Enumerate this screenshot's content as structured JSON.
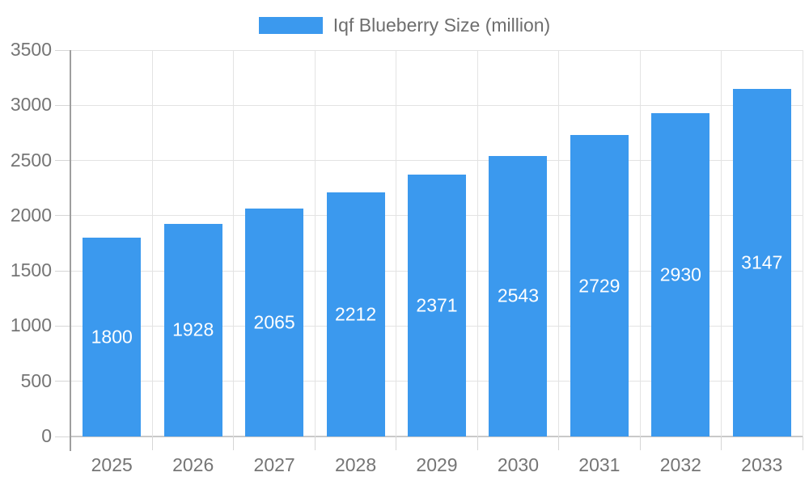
{
  "chart_data": {
    "type": "bar",
    "title": "Iqf Blueberry Size (million)",
    "categories": [
      "2025",
      "2026",
      "2027",
      "2028",
      "2029",
      "2030",
      "2031",
      "2032",
      "2033"
    ],
    "values": [
      1800,
      1928,
      2065,
      2212,
      2371,
      2543,
      2729,
      2930,
      3147
    ],
    "yticks": [
      0,
      500,
      1000,
      1500,
      2000,
      2500,
      3000,
      3500
    ],
    "ylim": [
      0,
      3500
    ],
    "ytick_step": 500,
    "xlabel": "",
    "ylabel": "",
    "grid": true,
    "legend": {
      "label": "Iqf Blueberry Size (million)",
      "position": "top-center"
    },
    "colors": {
      "bar": "#3B99EE",
      "value_label": "#FFFFFF",
      "axis_text": "#757575",
      "legend_text": "#6E6E6E",
      "gridline": "#E3E3E3",
      "zero_line": "#C9C9C9",
      "axis_line": "#9E9E9E",
      "tick": "#D6D6D6",
      "background": "#FFFFFF"
    }
  }
}
